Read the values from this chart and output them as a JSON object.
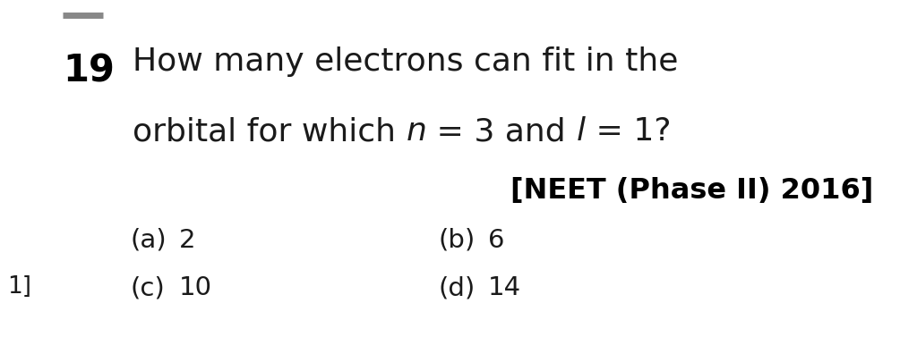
{
  "background_color": "#ffffff",
  "text_color": "#1a1a1a",
  "bold_color": "#000000",
  "overline_color": "#888888",
  "question_number": "19",
  "line1": "How many electrons can fit in the",
  "line2_prefix": "orbital for which ",
  "line2_n": "n",
  "line2_mid": " = 3 and ",
  "line2_l": "l",
  "line2_suffix": " = 1?",
  "source": "[NEET (Phase II) 2016]",
  "opt_a_label": "(a)",
  "opt_a_val": "2",
  "opt_b_label": "(b)",
  "opt_b_val": "6",
  "opt_c_label": "(c)",
  "opt_c_val": "10",
  "opt_d_label": "(d)",
  "opt_d_val": "14",
  "left_bracket": "1]",
  "fs_number": 30,
  "fs_question": 26,
  "fs_source": 23,
  "fs_options": 21,
  "fs_bracket": 19
}
